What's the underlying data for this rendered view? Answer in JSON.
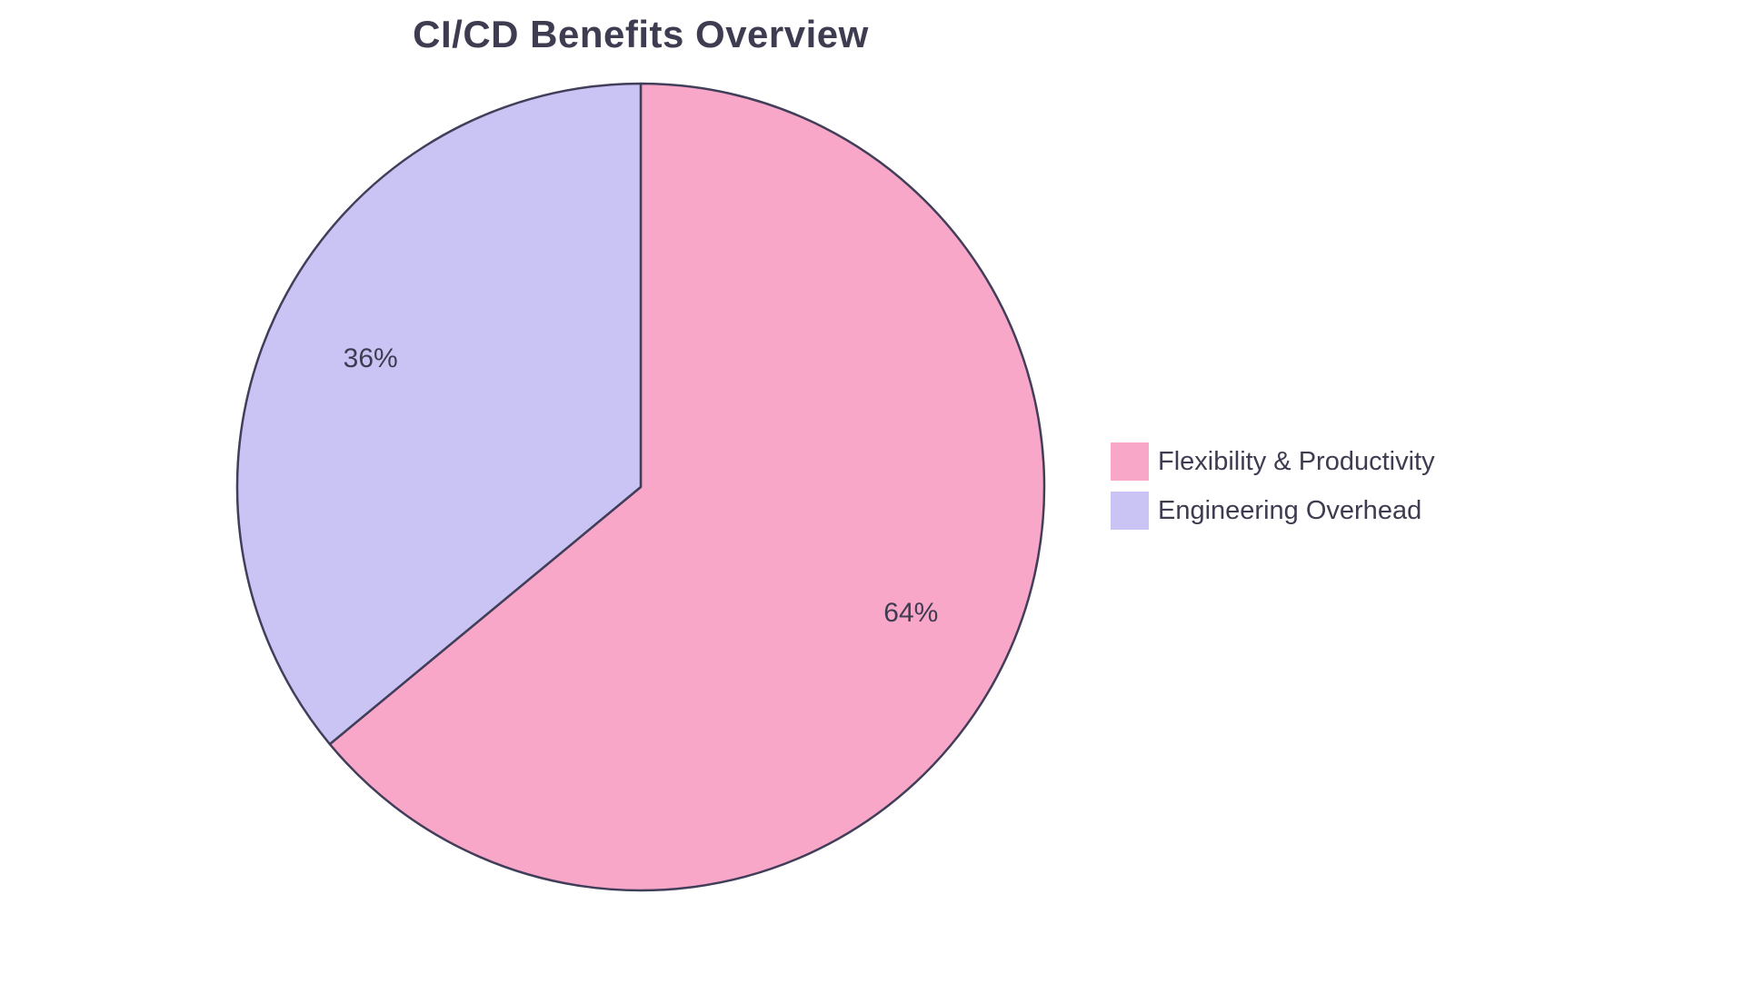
{
  "chart_data": {
    "type": "pie",
    "title": "CI/CD Benefits Overview",
    "labels": [
      "Flexibility & Productivity",
      "Engineering Overhead"
    ],
    "values": [
      64,
      36
    ],
    "pct_labels": [
      "64%",
      "36%"
    ],
    "colors": [
      "#F9A7C8",
      "#C9C4F4"
    ],
    "stroke_color": "#413E5A",
    "text_color": "#3E3C51",
    "start_angle_deg": 0,
    "direction": "clockwise",
    "legend_position": "right",
    "background": "#FFFFFF"
  }
}
